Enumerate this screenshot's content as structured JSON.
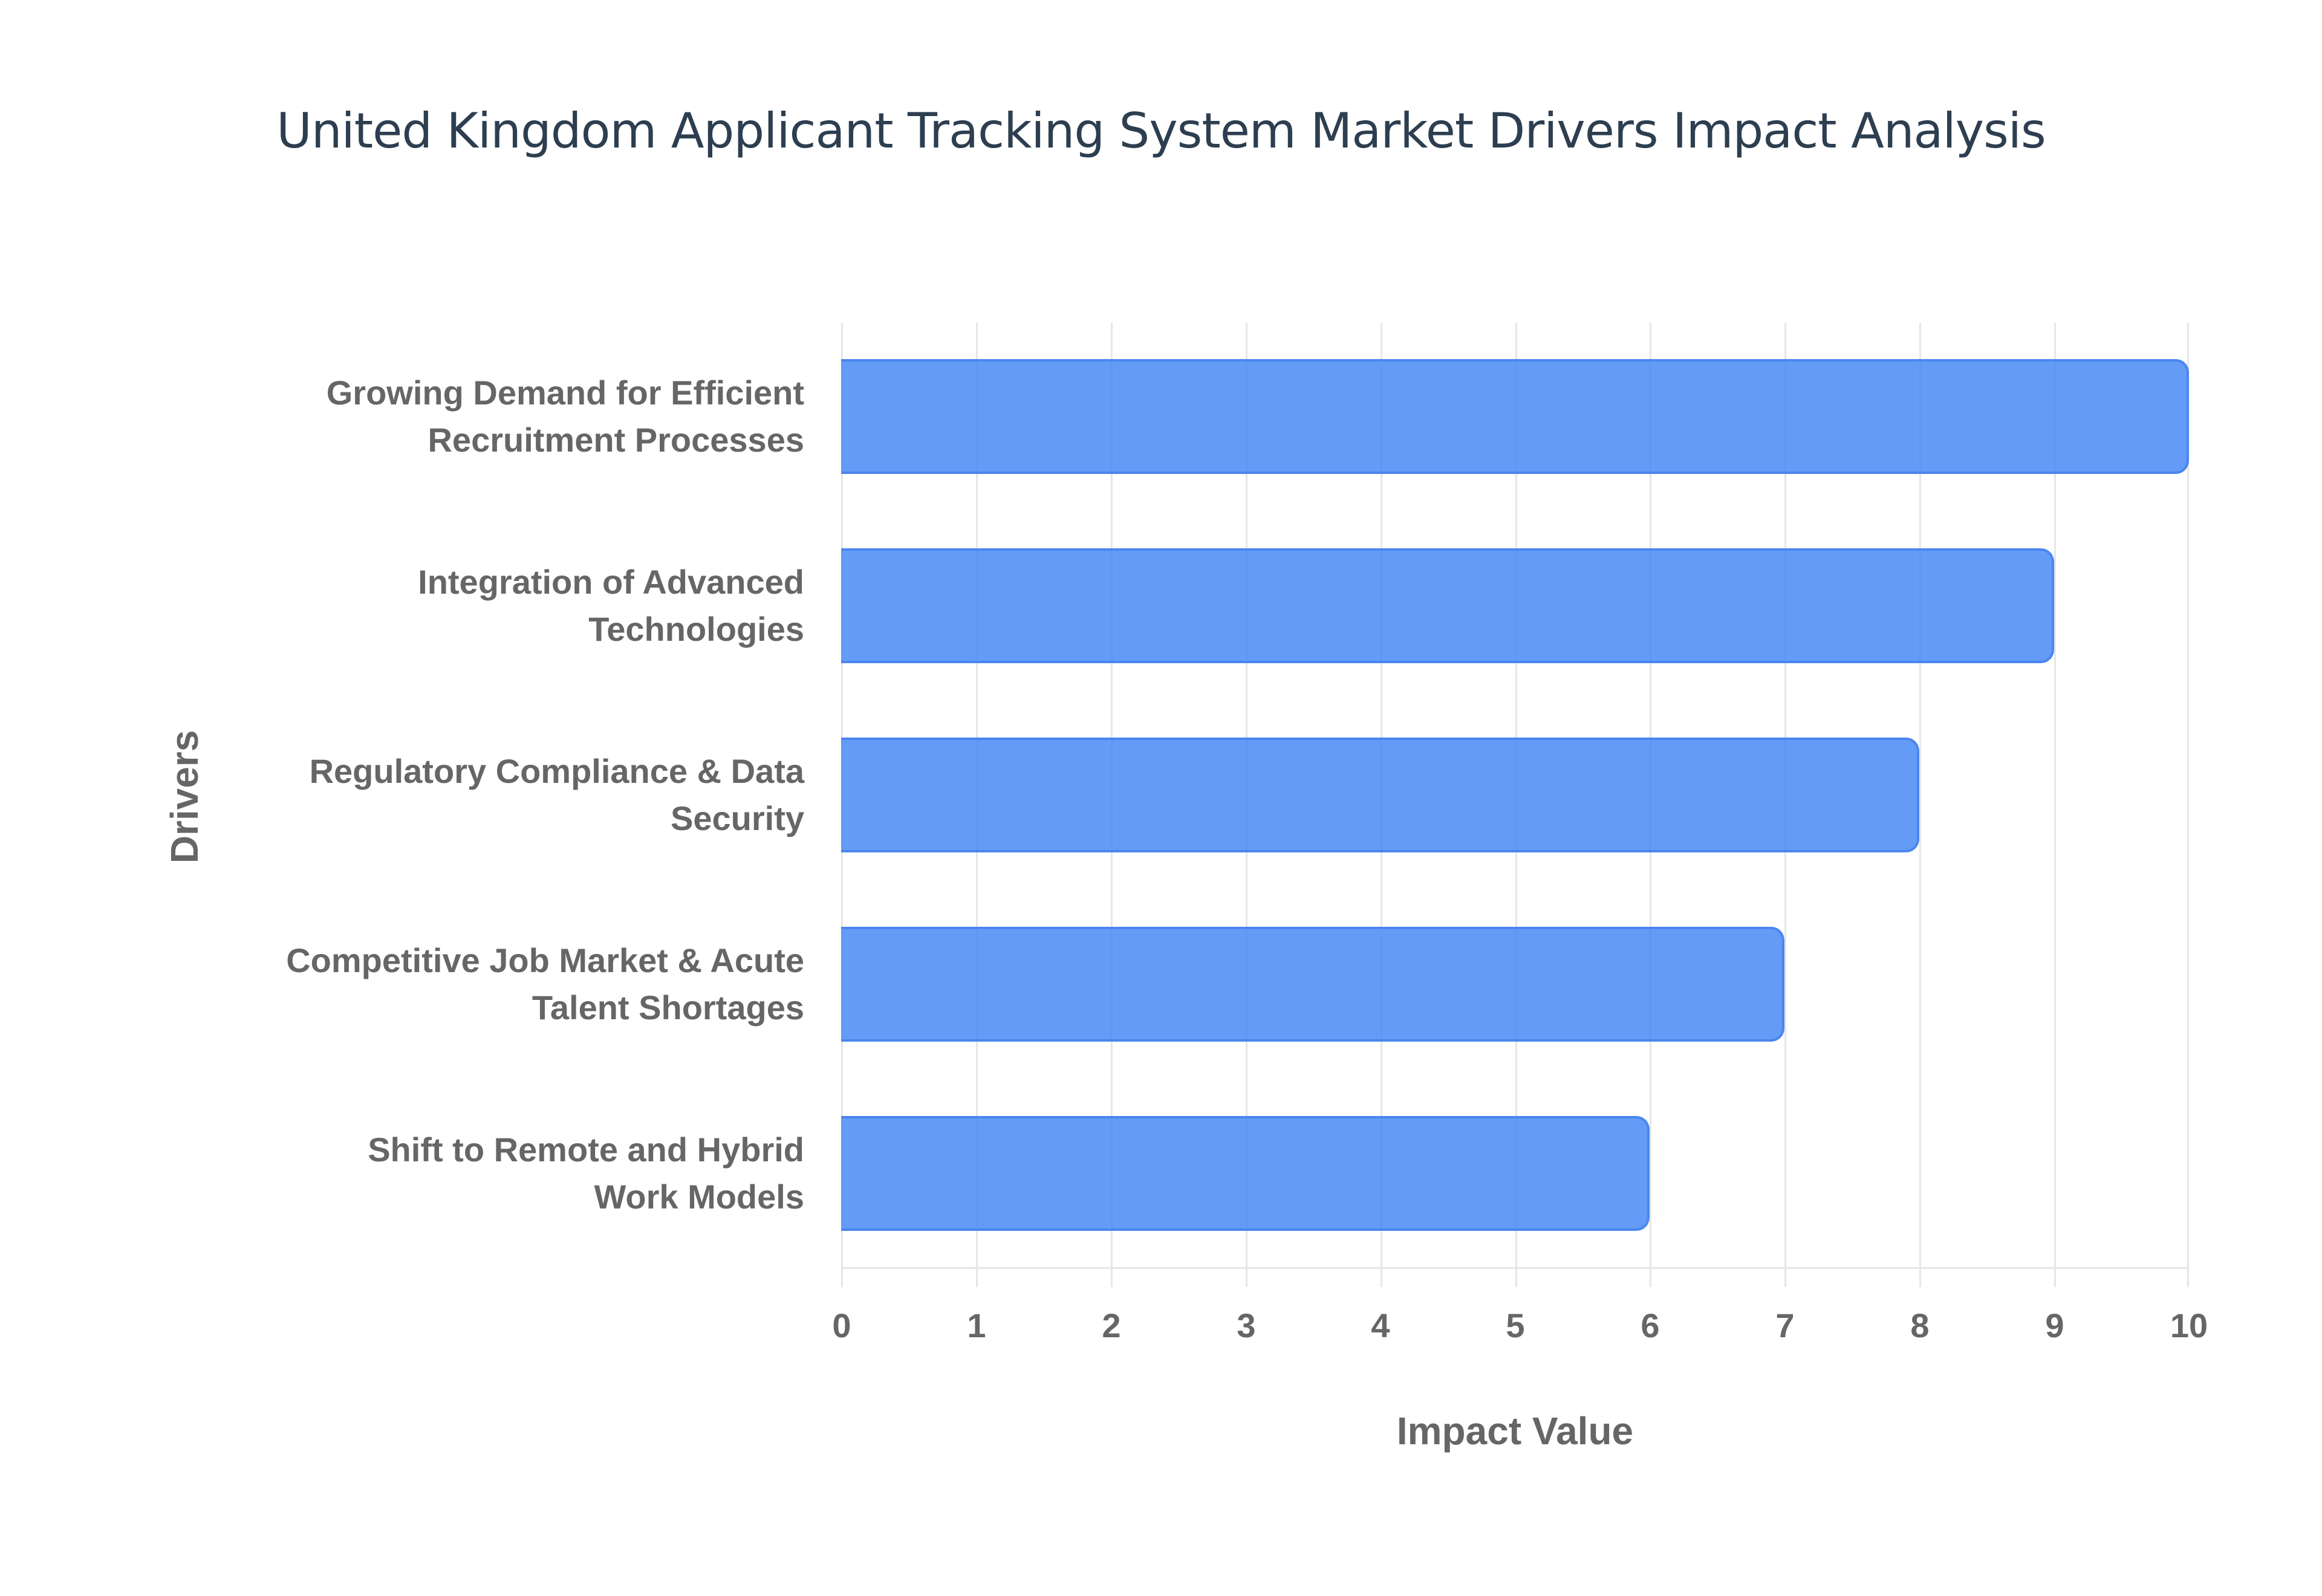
{
  "chart_data": {
    "type": "bar",
    "orientation": "horizontal",
    "title": "United Kingdom Applicant Tracking System Market Drivers Impact Analysis",
    "xlabel": "Impact Value",
    "ylabel": "Drivers",
    "xlim": [
      0,
      10
    ],
    "x_ticks": [
      "0",
      "1",
      "2",
      "3",
      "4",
      "5",
      "6",
      "7",
      "8",
      "9",
      "10"
    ],
    "grid": true,
    "legend": null,
    "bar_color": "#4285f4",
    "categories": [
      "Growing Demand for Efficient Recruitment Processes",
      "Integration of Advanced Technologies",
      "Regulatory Compliance & Data Security",
      "Competitive Job Market & Acute Talent Shortages",
      "Shift to Remote and Hybrid Work Models"
    ],
    "values": [
      10,
      9,
      8,
      7,
      6
    ]
  },
  "labels": [
    {
      "line1": "Growing Demand for Efficient",
      "line2": "Recruitment Processes"
    },
    {
      "line1": "Integration of Advanced",
      "line2": "Technologies"
    },
    {
      "line1": "Regulatory Compliance & Data",
      "line2": "Security"
    },
    {
      "line1": "Competitive Job Market & Acute",
      "line2": "Talent Shortages"
    },
    {
      "line1": "Shift to Remote and Hybrid",
      "line2": "Work Models"
    }
  ]
}
